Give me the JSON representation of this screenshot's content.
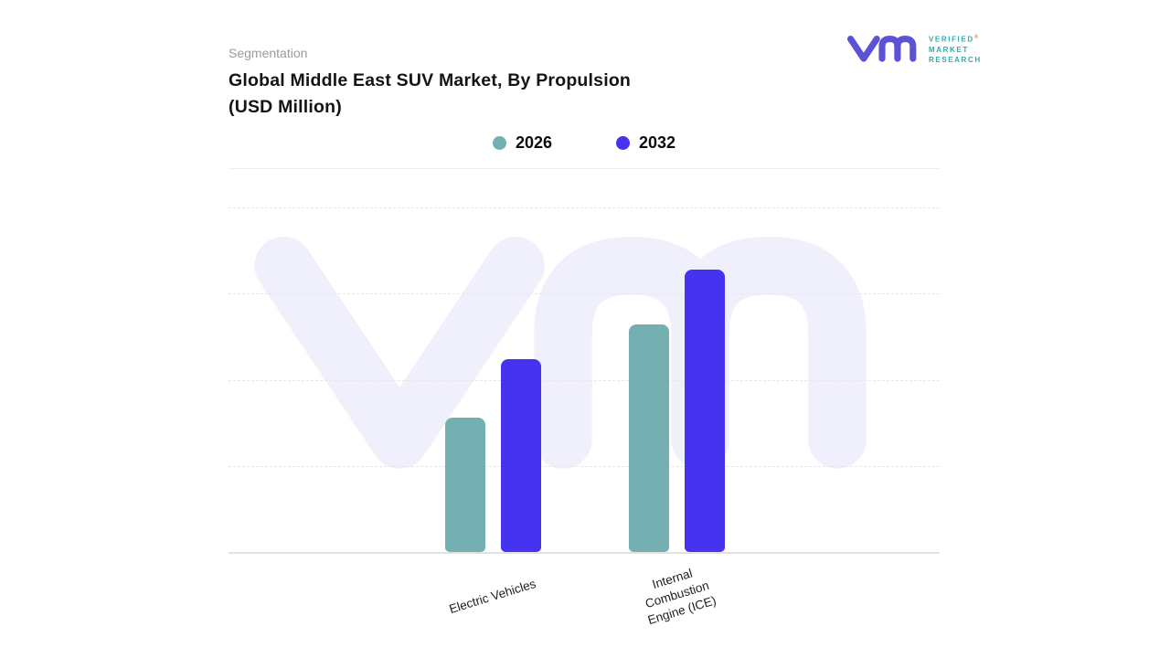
{
  "header": {
    "eyebrow": "Segmentation",
    "title_line1": "Global Middle East SUV Market, By Propulsion",
    "title_line2": "(USD Million)"
  },
  "logo": {
    "line1": "VERIFIED",
    "line2": "MARKET",
    "line3": "RESEARCH",
    "registered_mark": "®",
    "mark_color": "#5B52D5",
    "text_color": "#3BA6A6"
  },
  "chart_data": {
    "type": "bar",
    "title": "Global Middle East SUV Market, By Propulsion (USD Million)",
    "categories": [
      "Electric Vehicles",
      "Internal Combustion Engine (ICE)"
    ],
    "series": [
      {
        "name": "2026",
        "color": "#74B0B1",
        "values": [
          39,
          66
        ]
      },
      {
        "name": "2032",
        "color": "#4633F0",
        "values": [
          56,
          82
        ]
      }
    ],
    "xlabel": "",
    "ylabel": "",
    "ylim": [
      0,
      100
    ],
    "y_axis_tick_labels_visible": false,
    "values_estimated_from_bar_heights": true,
    "grid": "dashed-horizontal",
    "legend_position": "top-center"
  }
}
